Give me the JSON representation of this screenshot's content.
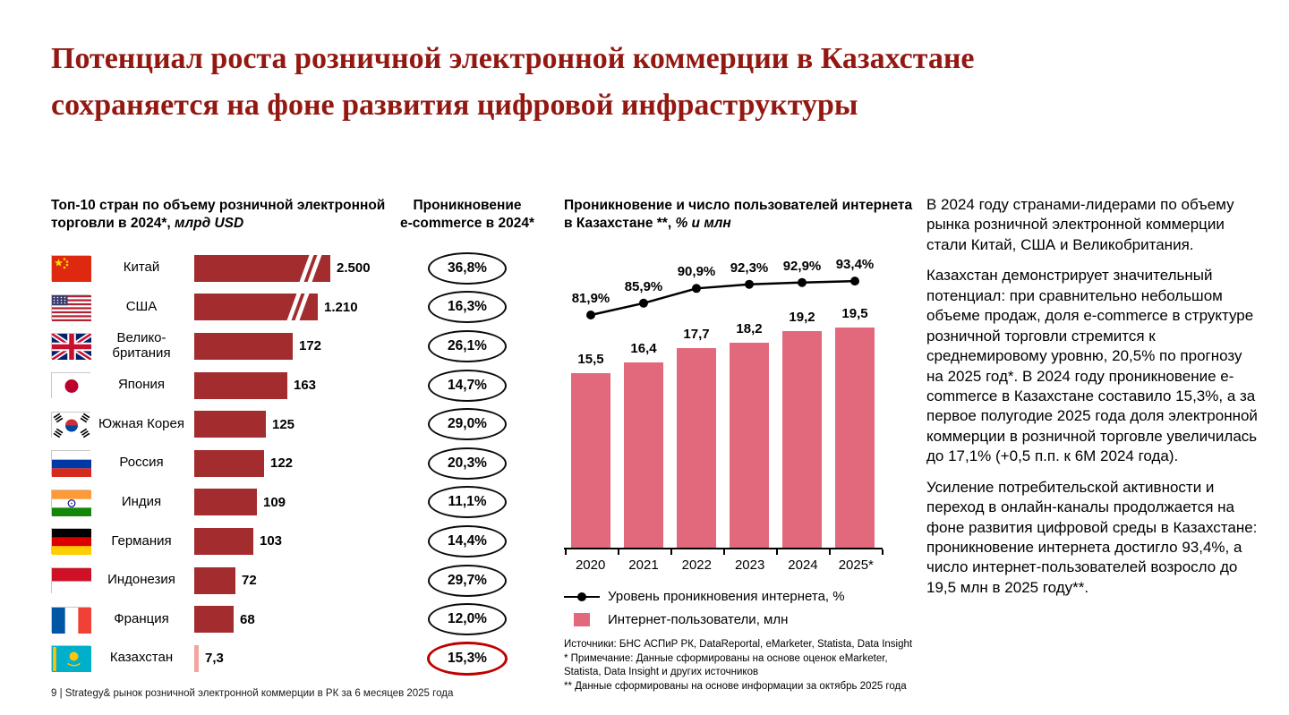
{
  "title": {
    "line1": "Потенциал роста розничной электронной коммерции в Казахстане",
    "line2": "сохраняется на фоне развития цифровой инфраструктуры"
  },
  "top10_header": {
    "bold": "Топ-10 стран по объему розничной электронной торговли в 2024*, ",
    "italic": "млрд USD"
  },
  "ovals_header": {
    "line1": "Проникновение",
    "line2": "e-commerce в 2024*"
  },
  "combo_header": {
    "bold": "Проникновение и число пользователей интернета в Казахстане **, ",
    "italic": "% и млн"
  },
  "chart_data": [
    {
      "type": "bar",
      "orientation": "horizontal",
      "title": "Топ-10 стран по объему розничной электронной торговли в 2024*",
      "units": "млрд USD",
      "categories": [
        "Китай",
        "США",
        "Велико-британия",
        "Япония",
        "Южная Корея",
        "Россия",
        "Индия",
        "Германия",
        "Индонезия",
        "Франция",
        "Казахстан"
      ],
      "values": [
        2500,
        1210,
        172,
        163,
        125,
        122,
        109,
        103,
        72,
        68,
        7.3
      ],
      "value_labels": [
        "2.500",
        "1.210",
        "172",
        "163",
        "125",
        "122",
        "109",
        "103",
        "72",
        "68",
        "7,3"
      ],
      "flags": [
        "cn",
        "us",
        "gb",
        "jp",
        "kr",
        "ru",
        "in",
        "de",
        "id",
        "fr",
        "kz"
      ],
      "broken_indices": [
        0,
        1
      ],
      "penetration_labels": [
        "36,8%",
        "16,3%",
        "26,1%",
        "14,7%",
        "29,0%",
        "20,3%",
        "11,1%",
        "14,4%",
        "29,7%",
        "12,0%",
        "15,3%"
      ],
      "highlight_index": 10
    },
    {
      "type": "combo",
      "title": "Проникновение и число пользователей интернета в Казахстане **",
      "units": "% и млн",
      "categories": [
        "2020",
        "2021",
        "2022",
        "2023",
        "2024",
        "2025*"
      ],
      "series": [
        {
          "name": "Уровень проникновения интернета, %",
          "type": "line",
          "values": [
            81.9,
            85.9,
            90.9,
            92.3,
            92.9,
            93.4
          ],
          "labels": [
            "81,9%",
            "85,9%",
            "90,9%",
            "92,3%",
            "92,9%",
            "93,4%"
          ]
        },
        {
          "name": "Интернет-пользователи, млн",
          "type": "bar",
          "values": [
            15.5,
            16.4,
            17.7,
            18.2,
            19.2,
            19.5
          ],
          "labels": [
            "15,5",
            "16,4",
            "17,7",
            "18,2",
            "19,2",
            "19,5"
          ]
        }
      ]
    }
  ],
  "sources": [
    "Источники: БНС АСПиР РК, DataReportal, eMarketer, Statista, Data Insight",
    "* Примечание: Данные сформированы на основе оценок eMarketer, Statista, Data Insight и других источников",
    "** Данные сформированы на основе информации за октябрь 2025 года"
  ],
  "right_text": {
    "p1": "В 2024 году странами-лидерами по объему рынка розничной электронной коммерции стали Китай, США и Великобритания.",
    "p2": "Казахстан демонстрирует значительный потенциал: при сравнительно небольшом объеме продаж, доля e-commerce в структуре розничной торговли стремится к среднемировому уровню, 20,5% по прогнозу на 2025 год*. В 2024 году проникновение e-commerce в Казахстане составило 15,3%, а за первое полугодие 2025 года доля электронной коммерции в розничной торговле увеличилась до 17,1% (+0,5 п.п. к 6М 2024 года).",
    "p3": "Усиление потребительской активности и переход в онлайн-каналы продолжается на фоне развития цифровой среды в Казахстане: проникновение интернета достигло 93,4%, а число интернет-пользователей возросло до 19,5 млн в 2025 году**."
  },
  "footer": "9 | Strategy& рынок розничной электронной коммерции в РК за 6 месяцев 2025 года",
  "colors": {
    "accent_red": "#941812",
    "bar_red": "#A32C2E",
    "bar_pink": "#E2697B",
    "kz_pink": "#F2A49E",
    "highlight_red": "#C00000"
  }
}
